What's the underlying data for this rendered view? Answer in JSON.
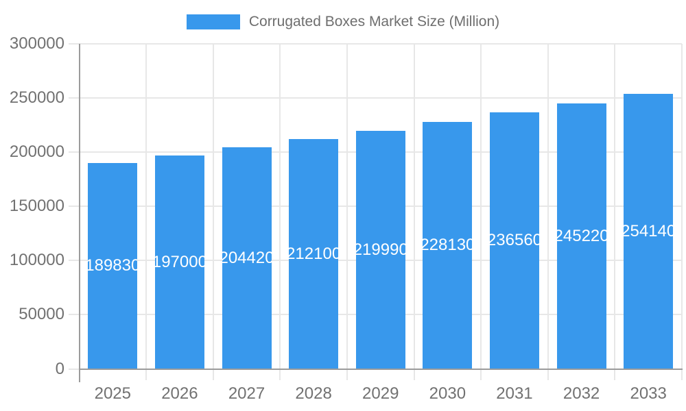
{
  "chart_data": {
    "type": "bar",
    "title": "",
    "categories": [
      "2025",
      "2026",
      "2027",
      "2028",
      "2029",
      "2030",
      "2031",
      "2032",
      "2033"
    ],
    "series": [
      {
        "name": "Corrugated Boxes Market Size (Million)",
        "values": [
          189830,
          197000,
          204420,
          212100,
          219990,
          228130,
          236560,
          245220,
          254140
        ]
      }
    ],
    "xlabel": "",
    "ylabel": "",
    "ylim": [
      0,
      300000
    ],
    "ytick_step": 50000,
    "y_ticks": [
      "0",
      "50000",
      "100000",
      "150000",
      "200000",
      "250000",
      "300000"
    ],
    "grid": "on",
    "legend_position": "top",
    "colors": {
      "bar": "#3898EC",
      "bar_label_text": "#FFFFFF",
      "grid": "#E7E7E7",
      "axis_line": "#9B9B9B",
      "tick_text": "#717171",
      "legend_text": "#6E6E6E",
      "background": "#FFFFFF"
    }
  }
}
